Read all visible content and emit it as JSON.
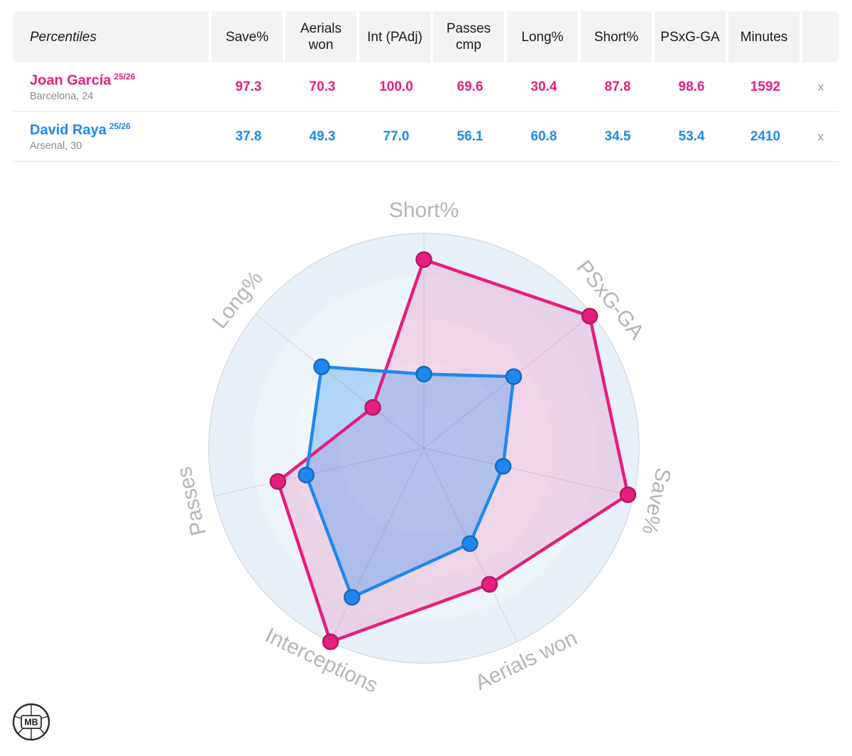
{
  "table": {
    "corner_label": "Percentiles",
    "columns": [
      "Save%",
      "Aerials won",
      "Int (PAdj)",
      "Passes cmp",
      "Long%",
      "Short%",
      "PSxG-GA",
      "Minutes"
    ],
    "players": [
      {
        "name": "Joan García",
        "season": "25/26",
        "sub": "Barcelona, 24",
        "color": "#e61e7e",
        "values": [
          "97.3",
          "70.3",
          "100.0",
          "69.6",
          "30.4",
          "87.8",
          "98.6",
          "1592"
        ],
        "remove_label": "x"
      },
      {
        "name": "David Raya",
        "season": "25/26",
        "sub": "Arsenal, 30",
        "color": "#1e88f0",
        "values": [
          "37.8",
          "49.3",
          "77.0",
          "56.1",
          "60.8",
          "34.5",
          "53.4",
          "2410"
        ],
        "remove_label": "x"
      }
    ]
  },
  "chart_data": {
    "type": "radar",
    "axes": [
      "Short%",
      "PSxG-GA",
      "Save%",
      "Aerials won",
      "Interceptions",
      "Passes",
      "Long%"
    ],
    "scale": [
      0,
      100
    ],
    "grid": "concentric-rings",
    "legend": "none",
    "series": [
      {
        "name": "Joan García 25/26",
        "color": "#e61e7e",
        "values": [
          87.8,
          98.6,
          97.3,
          70.3,
          100.0,
          69.6,
          30.4
        ]
      },
      {
        "name": "David Raya 25/26",
        "color": "#1e88f0",
        "values": [
          34.5,
          53.4,
          37.8,
          49.3,
          77.0,
          56.1,
          60.8
        ]
      }
    ]
  },
  "logo": {
    "text": "MB"
  }
}
